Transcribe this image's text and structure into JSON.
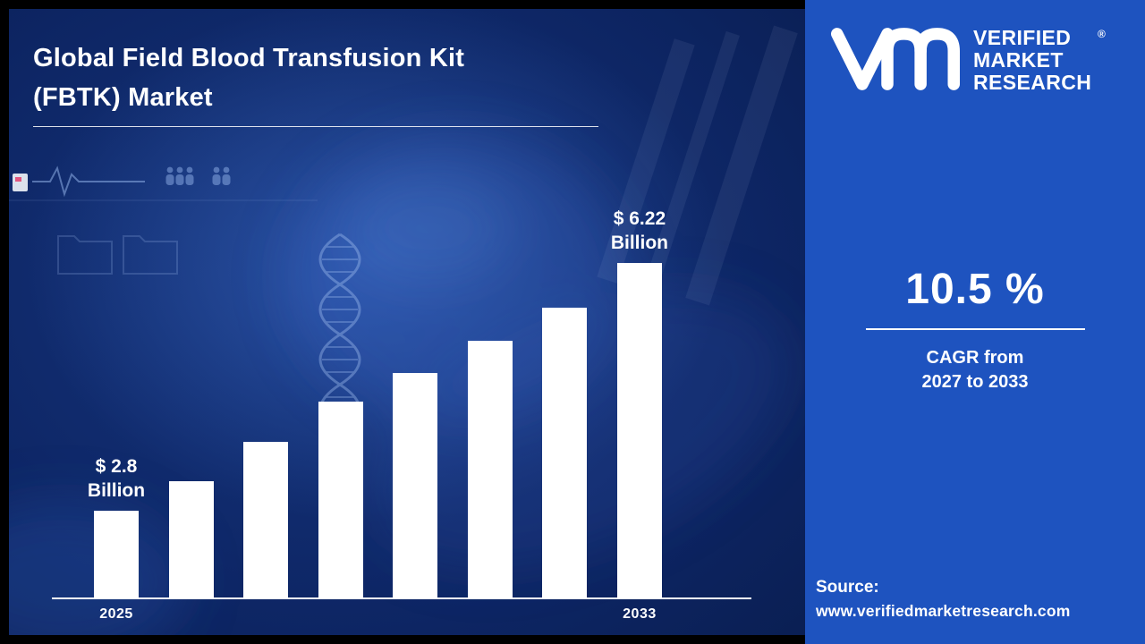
{
  "header": {
    "title_line1": "Global Field Blood Transfusion Kit",
    "title_line2": "(FBTK) Market"
  },
  "chart_data": {
    "type": "bar",
    "title": "Global Field Blood Transfusion Kit (FBTK) Market",
    "categories": [
      "2025",
      "",
      "",
      "",
      "",
      "",
      "",
      "2033"
    ],
    "values": [
      2.8,
      3.2,
      3.75,
      4.3,
      4.7,
      5.15,
      5.6,
      6.22
    ],
    "unit": "USD Billion",
    "bar_color": "#ffffff",
    "ylim": [
      1.6,
      6.22
    ],
    "grid": false,
    "legend": "none",
    "annotations": [
      {
        "bar_index": 0,
        "line1": "$ 2.8",
        "line2": "Billion"
      },
      {
        "bar_index": 7,
        "line1": "$ 6.22",
        "line2": "Billion"
      }
    ]
  },
  "sidebar": {
    "accent_color": "#1e53bf",
    "brand": {
      "logo_icon": "vmr-monogram-icon",
      "name_lines": [
        "VERIFIED",
        "MARKET",
        "RESEARCH"
      ],
      "registered_mark": "®"
    },
    "cagr": {
      "value": "10.5 %",
      "caption_line1": "CAGR from",
      "caption_line2": "2027 to 2033"
    },
    "source": {
      "label": "Source:",
      "url": "www.verifiedmarketresearch.com"
    }
  }
}
